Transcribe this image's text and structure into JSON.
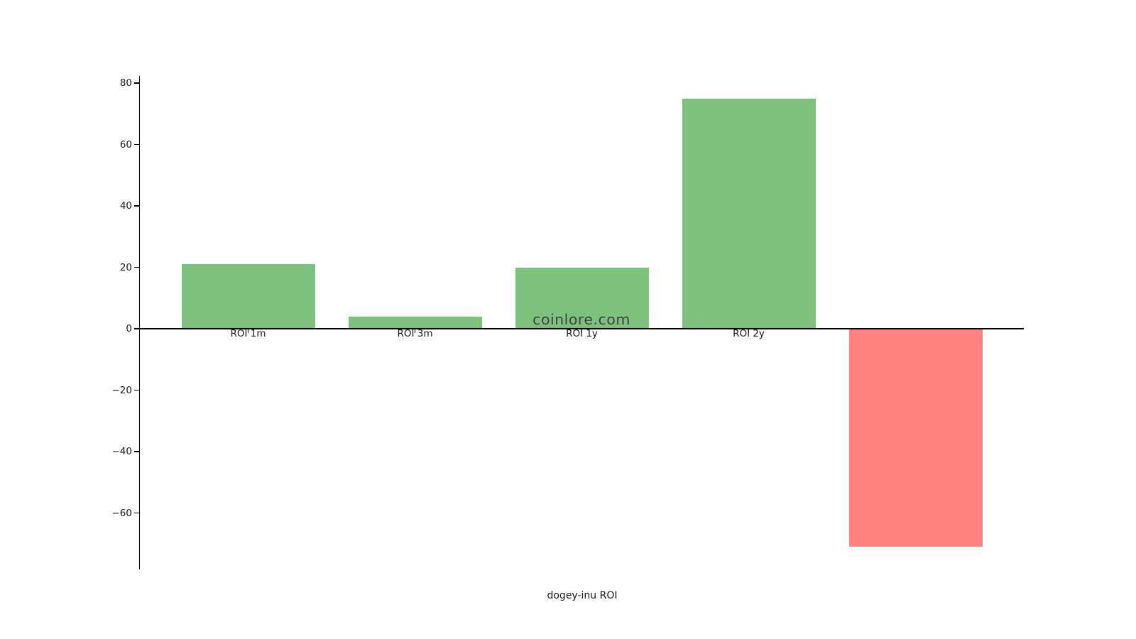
{
  "chart_data": {
    "type": "bar",
    "title": "dogey-inu ROI",
    "watermark": "coinlore.com",
    "categories": [
      "ROI 1m",
      "ROI 3m",
      "ROI 1y",
      "ROI 2y",
      ""
    ],
    "values": [
      21,
      4,
      20,
      75,
      -71
    ],
    "bar_colors": [
      "#7ec07e",
      "#7ec07e",
      "#7ec07e",
      "#7ec07e",
      "#ff8181"
    ],
    "positive_color": "#7ec07e",
    "negative_color": "#ff8181",
    "xlabel": "",
    "ylabel": "",
    "yticks": [
      80,
      60,
      40,
      20,
      0,
      -20,
      -40,
      -60
    ],
    "ytick_labels": [
      "80",
      "60",
      "40",
      "20",
      "0",
      "−20",
      "−40",
      "−60"
    ],
    "ylim": [
      -78,
      82.5
    ],
    "grid": false,
    "legend_position": "none",
    "axis_color": "#000000",
    "text_color": "#1a1a1a"
  }
}
